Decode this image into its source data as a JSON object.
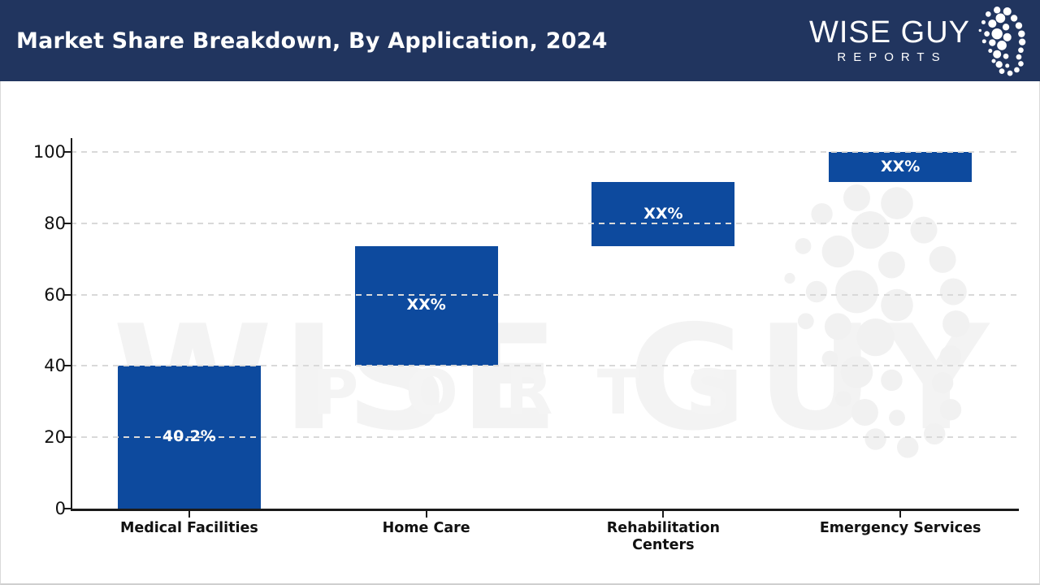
{
  "header": {
    "title": "Market Share Breakdown, By Application, 2024",
    "logo": {
      "name": "WISE GUY",
      "sub": "REPORTS"
    }
  },
  "watermark": {
    "line1": "WISE GUY",
    "line2": "REPORTS"
  },
  "colors": {
    "header_bg": "#21355F",
    "bar": "#0D4A9E",
    "grid": "#D9D9D9",
    "axis": "#1A1A1A",
    "bar_label_text": "#FFFFFF"
  },
  "chart_data": {
    "type": "bar",
    "variant": "waterfall-stacked-cumulative",
    "title": "Market Share Breakdown, By Application, 2024",
    "categories": [
      "Medical Facilities",
      "Home Care",
      "Rehabilitation Centers",
      "Emergency Services"
    ],
    "category_display_lines": [
      [
        "Medical Facilities"
      ],
      [
        "Home Care"
      ],
      [
        "Rehabilitation",
        "Centers"
      ],
      [
        "Emergency Services"
      ]
    ],
    "segments": [
      {
        "category": "Medical Facilities",
        "start": 0,
        "end": 40.2,
        "label": "40.2%"
      },
      {
        "category": "Home Care",
        "start": 40.2,
        "end": 73.5,
        "label": "XX%"
      },
      {
        "category": "Rehabilitation Centers",
        "start": 73.5,
        "end": 91.5,
        "label": "XX%"
      },
      {
        "category": "Emergency Services",
        "start": 91.5,
        "end": 100,
        "label": "XX%"
      }
    ],
    "bar_labels": [
      "40.2%",
      "XX%",
      "XX%",
      "XX%"
    ],
    "xlabel": "",
    "ylabel": "",
    "yticks": [
      0,
      20,
      40,
      60,
      80,
      100
    ],
    "ylim": [
      0,
      104
    ],
    "grid": "horizontal-dashed-over-bars",
    "legend": "none"
  }
}
